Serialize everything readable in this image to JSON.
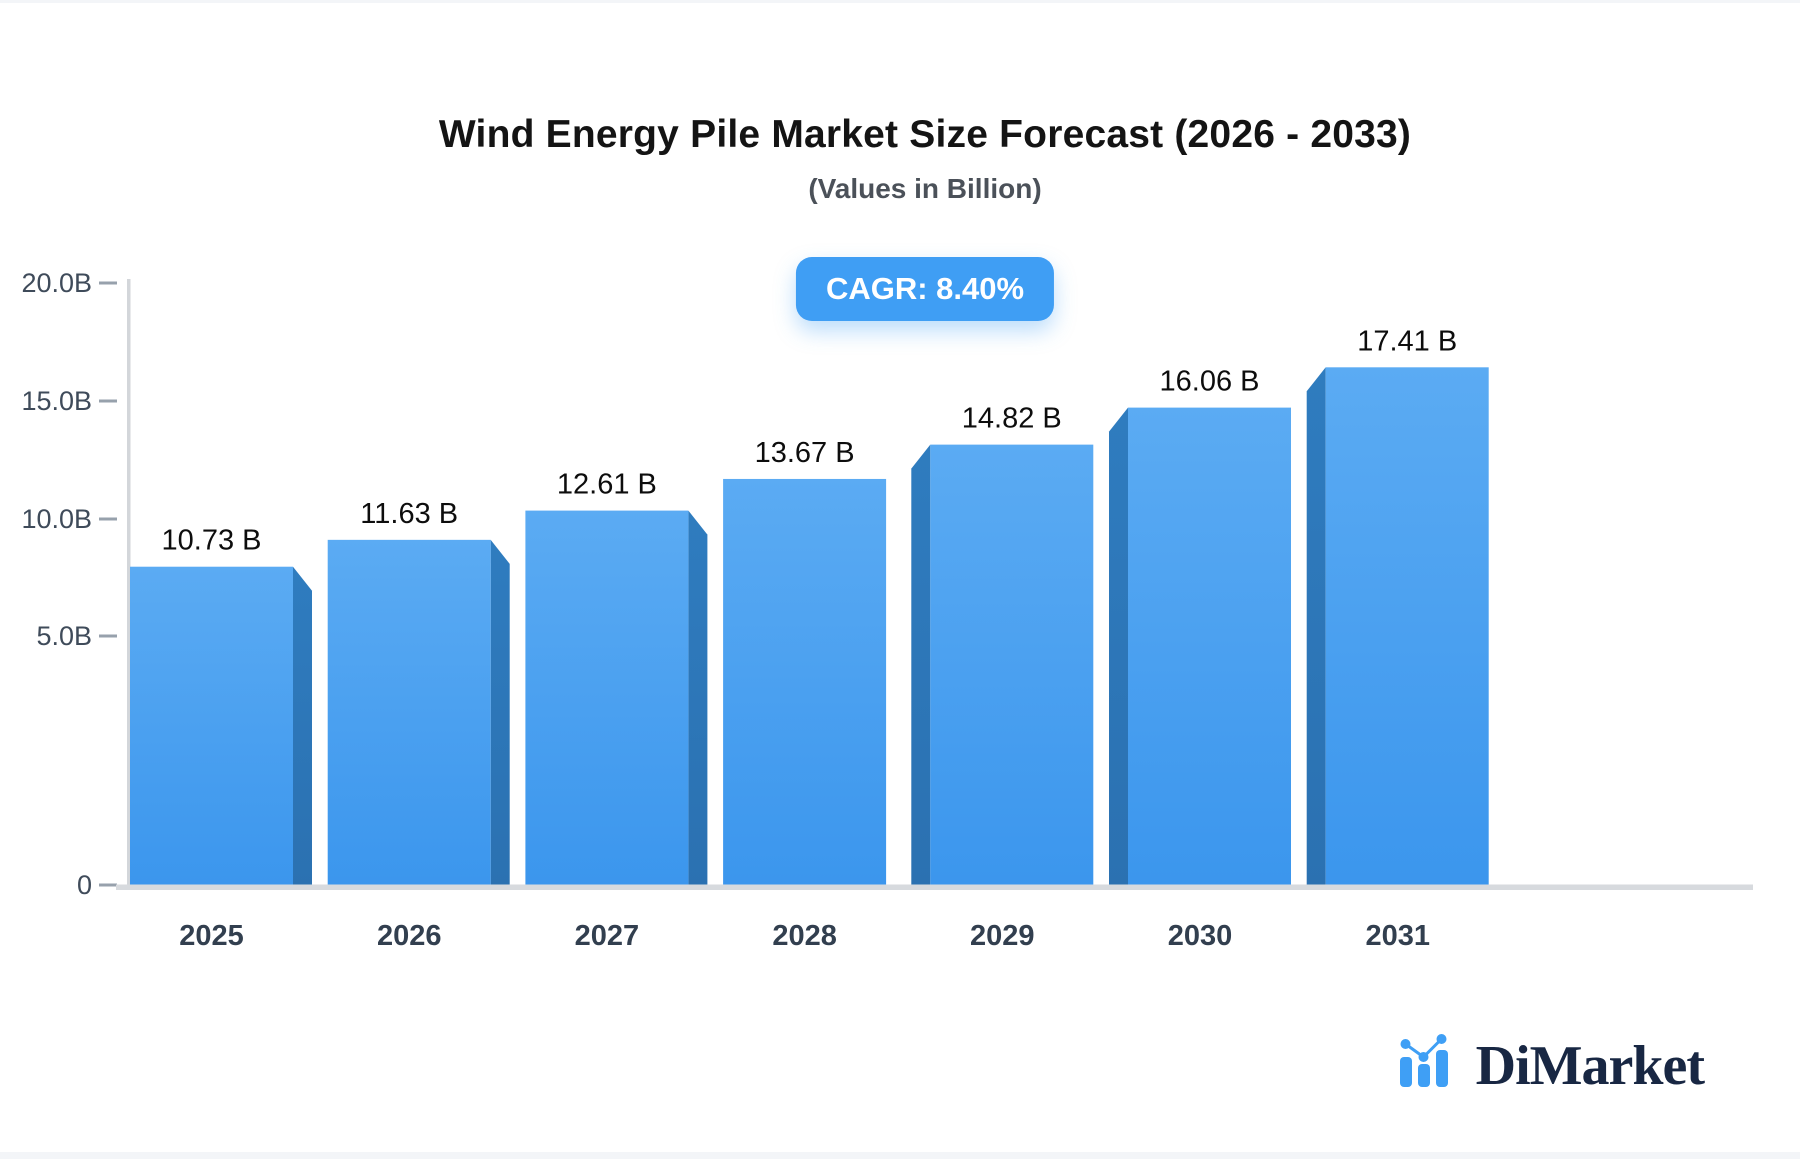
{
  "chart_data": {
    "type": "bar",
    "title": "Wind Energy Pile Market Size Forecast (2026 - 2033)",
    "subtitle": "(Values in Billion)",
    "cagr_label": "CAGR: 8.40%",
    "categories": [
      "2025",
      "2026",
      "2027",
      "2028",
      "2029",
      "2030",
      "2031"
    ],
    "values": [
      10.73,
      11.63,
      12.61,
      13.67,
      14.82,
      16.06,
      17.41
    ],
    "value_labels": [
      "10.73 B",
      "11.63 B",
      "12.61 B",
      "13.67 B",
      "14.82 B",
      "16.06 B",
      "17.41 B"
    ],
    "y_tick_labels": [
      "20.0B",
      "15.0B",
      "10.0B",
      "5.0B",
      "0"
    ],
    "ylim": [
      0,
      20
    ],
    "grid": false,
    "legend": false,
    "style": "3d-perspective-bars"
  },
  "branding": {
    "logo_text": "DiMarket"
  },
  "colors": {
    "bar_front_top": "#5babf3",
    "bar_front_bottom": "#3b96ed",
    "bar_side": "#2d76b8",
    "badge_bg": "#3f9ef4",
    "axis_line": "#d3d6da",
    "baseline": "#d7dade",
    "tick_dash": "#97a1ac",
    "tick_label": "#3f4b5a",
    "year_label": "#323f4f",
    "value_label": "#0d0d0d",
    "logo_blue": "#3f9ff5",
    "logo_navy": "#182743"
  }
}
